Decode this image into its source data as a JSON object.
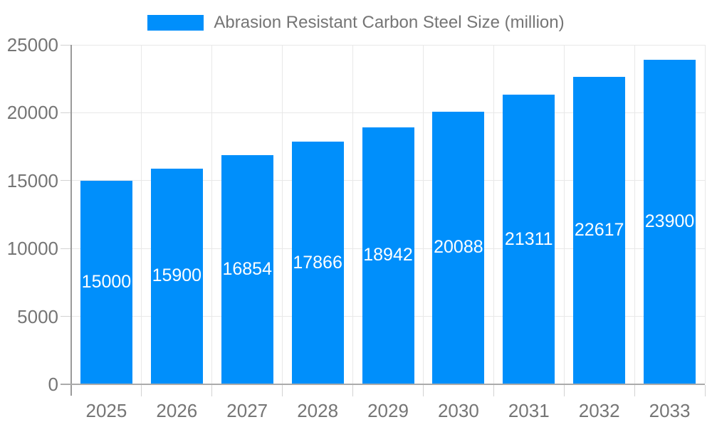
{
  "legend": {
    "label": "Abrasion Resistant Carbon Steel Size (million)"
  },
  "colors": {
    "bar": "#008FFB",
    "bar_value_label": "#FFFFFF",
    "axis_text": "#757575",
    "grid_line": "#E8E8E8",
    "tick_line": "#D2D2D2",
    "x_axis_line": "#ABABAB",
    "y_axis_line": "#9A9A9A",
    "background": "#FFFFFF"
  },
  "chart_data": {
    "type": "bar",
    "title": "Abrasion Resistant Carbon Steel Size (million)",
    "categories": [
      "2025",
      "2026",
      "2027",
      "2028",
      "2029",
      "2030",
      "2031",
      "2032",
      "2033"
    ],
    "values": [
      15000,
      15900,
      16854,
      17866,
      18942,
      20088,
      21311,
      22617,
      23900
    ],
    "series": [
      {
        "name": "Abrasion Resistant Carbon Steel Size (million)",
        "values": [
          15000,
          15900,
          16854,
          17866,
          18942,
          20088,
          21311,
          22617,
          23900
        ]
      }
    ],
    "xlabel": "",
    "ylabel": "",
    "ylim": [
      0,
      25000
    ],
    "yticks": [
      0,
      5000,
      10000,
      15000,
      20000,
      25000
    ],
    "grid": "both",
    "legend_position": "top",
    "value_label_position": "inside-center"
  }
}
